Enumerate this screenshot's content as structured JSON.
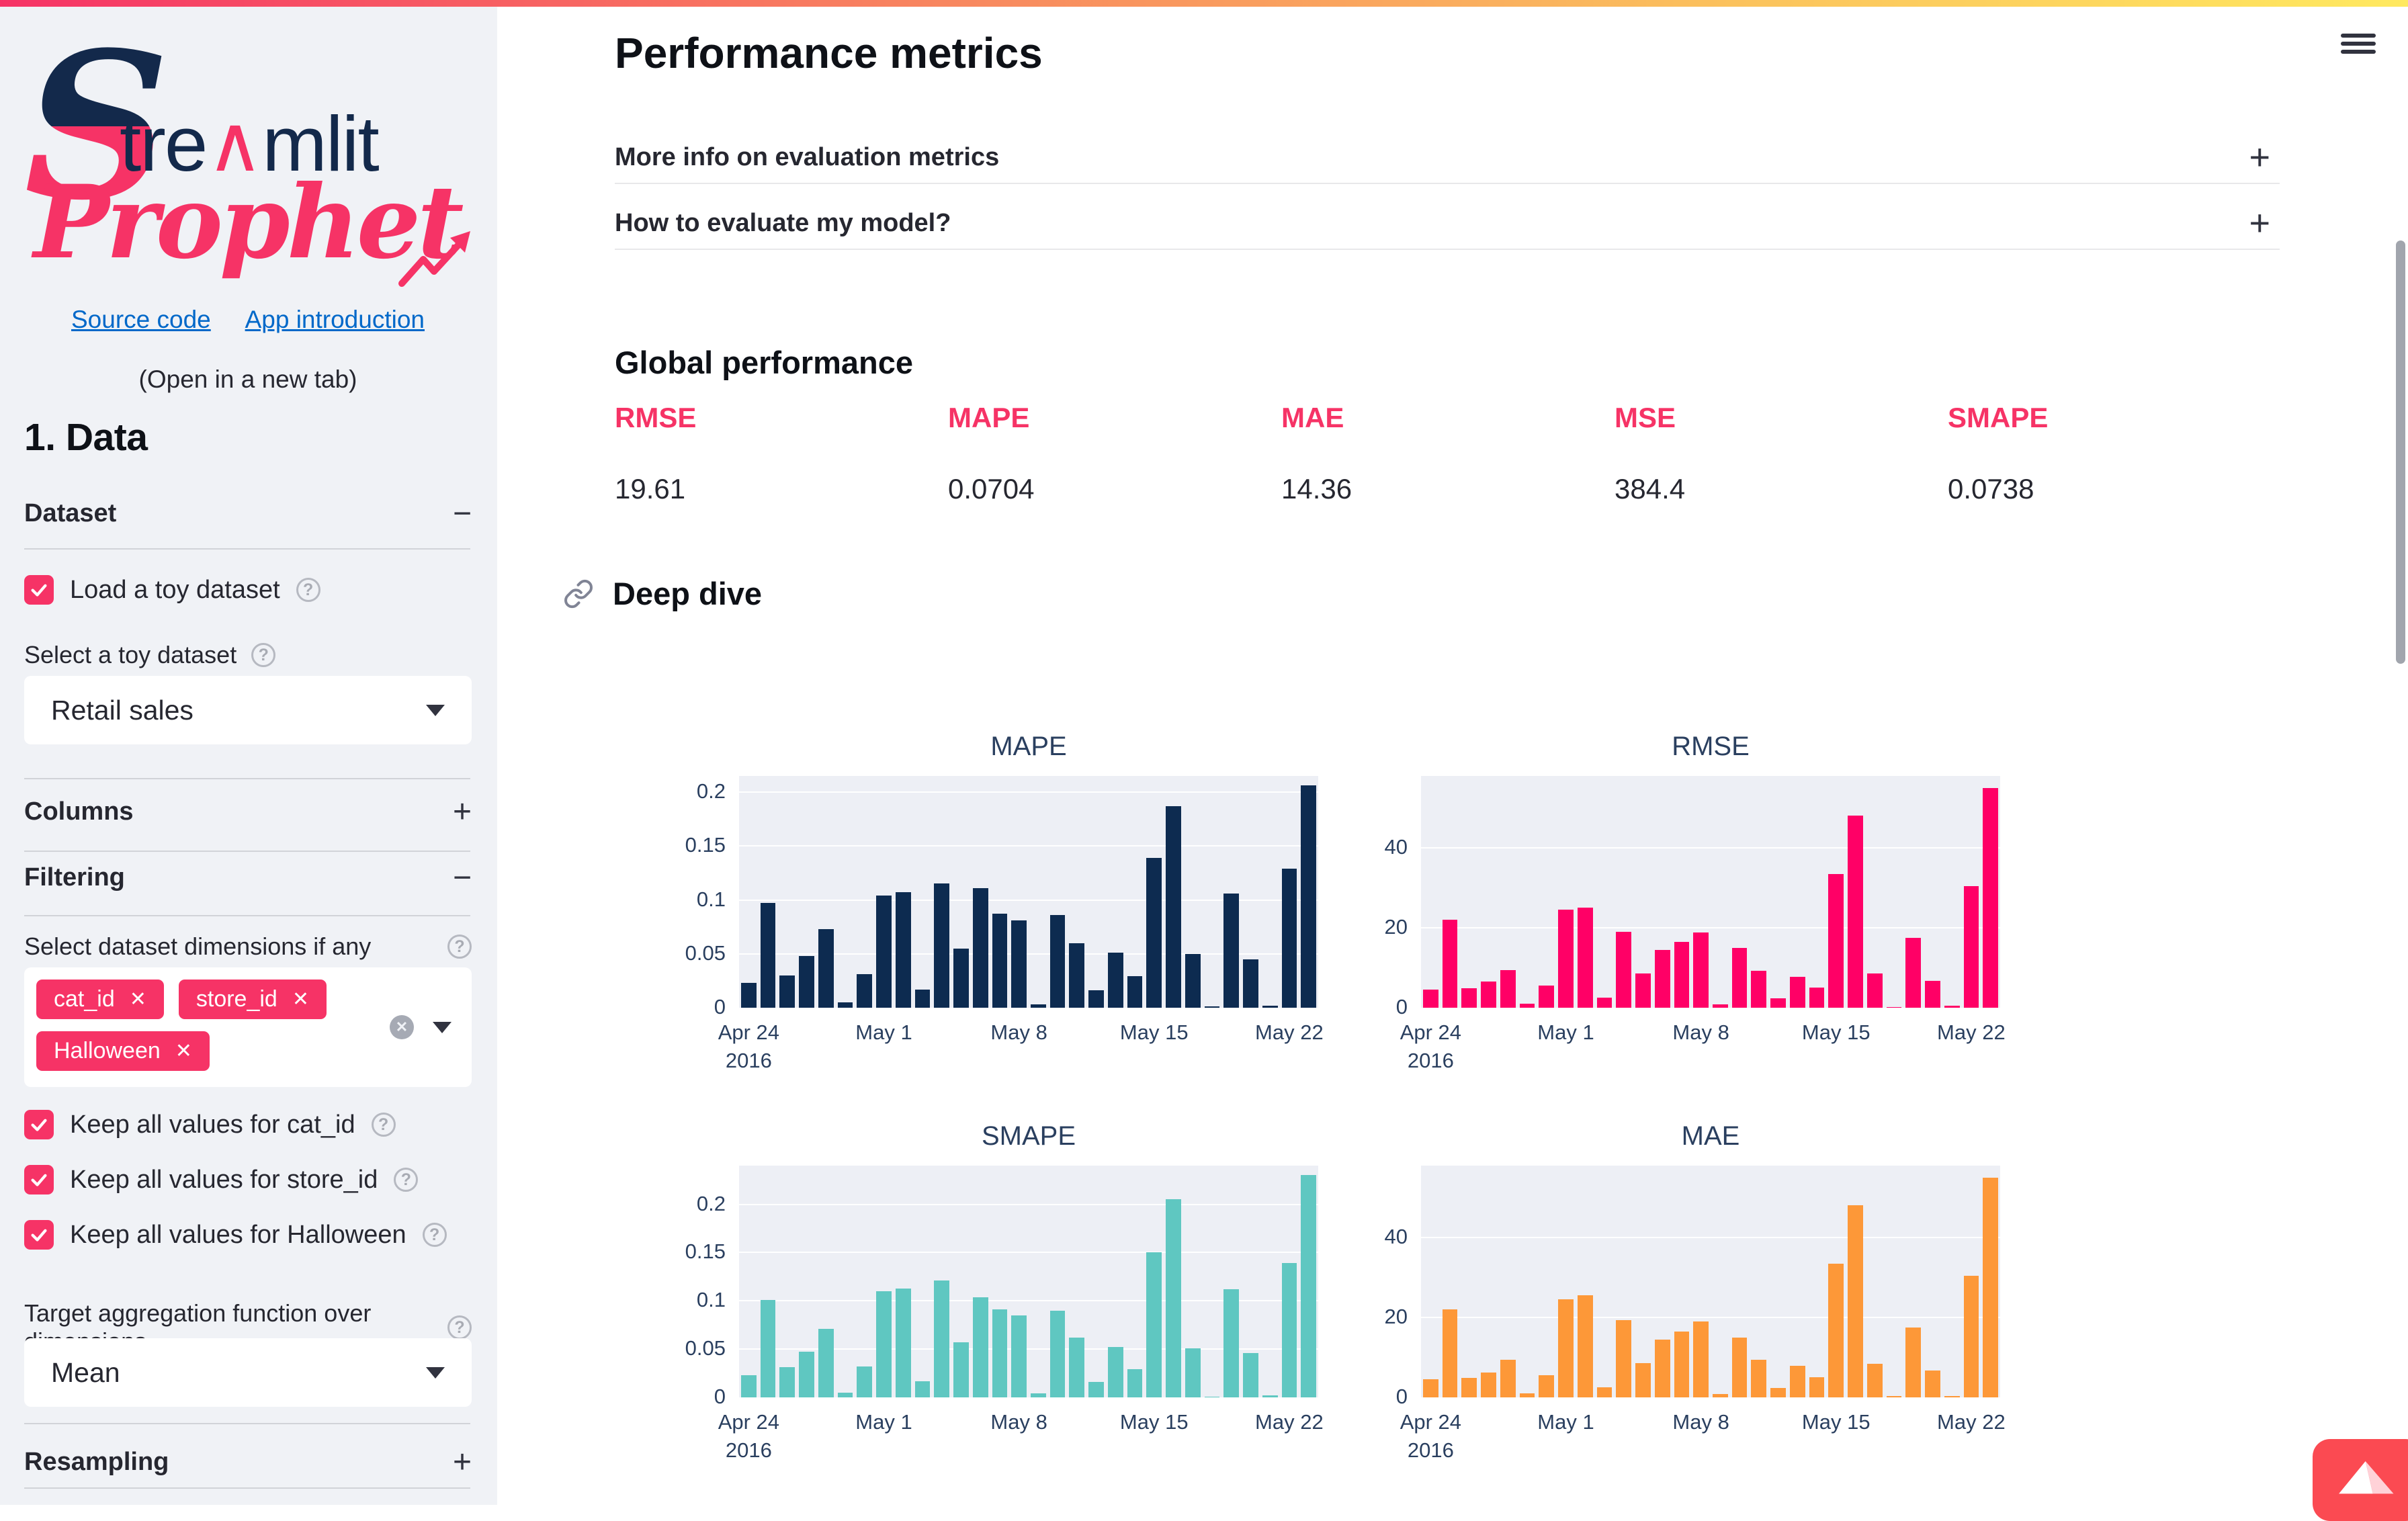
{
  "logo": {
    "big_letter": "S",
    "word1_pre": "tre",
    "word1_caret": "∧",
    "word1_post": "mlit",
    "word2": "Prophet",
    "navy": "#13294b",
    "pink": "#f63366"
  },
  "icons": {
    "help": "?",
    "close": "✕",
    "minus": "−",
    "plus": "+"
  },
  "colors": {
    "primary_pink": "#f63366",
    "sidebar_bg": "#f0f2f6",
    "link_blue": "#0068c9",
    "text_dark": "#262730",
    "badge_red": "#fb4a52"
  },
  "sidebar": {
    "links": [
      {
        "label": "Source code"
      },
      {
        "label": "App introduction"
      }
    ],
    "open_note": "(Open in a new tab)",
    "title": "1. Data",
    "sections": {
      "dataset": {
        "label": "Dataset",
        "state": "−"
      },
      "columns": {
        "label": "Columns",
        "state": "+"
      },
      "filtering": {
        "label": "Filtering",
        "state": "−"
      },
      "resampling": {
        "label": "Resampling",
        "state": "+"
      }
    },
    "load_toy_dataset": {
      "label": "Load a toy dataset",
      "checked": true
    },
    "toy_dataset_select": {
      "label": "Select a toy dataset",
      "value": "Retail sales"
    },
    "dimensions_label": "Select dataset dimensions if any",
    "dimension_tags": [
      "cat_id",
      "store_id",
      "Halloween"
    ],
    "keep_checkboxes": [
      {
        "label": "Keep all values for cat_id",
        "checked": true
      },
      {
        "label": "Keep all values for store_id",
        "checked": true
      },
      {
        "label": "Keep all values for Halloween",
        "checked": true
      }
    ],
    "aggregation": {
      "label": "Target aggregation function over dimensions",
      "value": "Mean"
    }
  },
  "main": {
    "title": "Performance metrics",
    "expanders": [
      {
        "label": "More info on evaluation metrics",
        "state": "+"
      },
      {
        "label": "How to evaluate my model?",
        "state": "+"
      }
    ],
    "global_performance": {
      "title": "Global performance",
      "metrics": [
        {
          "label": "RMSE",
          "value": "19.61"
        },
        {
          "label": "MAPE",
          "value": "0.0704"
        },
        {
          "label": "MAE",
          "value": "14.36"
        },
        {
          "label": "MSE",
          "value": "384.4"
        },
        {
          "label": "SMAPE",
          "value": "0.0738"
        }
      ]
    },
    "deep_dive_title": "Deep dive"
  },
  "chart_data": {
    "type": "bar",
    "grid": true,
    "legend": false,
    "plot_bg": "#edeff5",
    "grid_color": "#ffffff",
    "tick_color": "#2a3f5f",
    "x_dates": [
      "2016-04-24",
      "2016-04-25",
      "2016-04-26",
      "2016-04-27",
      "2016-04-28",
      "2016-04-29",
      "2016-04-30",
      "2016-05-01",
      "2016-05-02",
      "2016-05-03",
      "2016-05-04",
      "2016-05-05",
      "2016-05-06",
      "2016-05-07",
      "2016-05-08",
      "2016-05-09",
      "2016-05-10",
      "2016-05-11",
      "2016-05-12",
      "2016-05-13",
      "2016-05-14",
      "2016-05-15",
      "2016-05-16",
      "2016-05-17",
      "2016-05-18",
      "2016-05-19",
      "2016-05-20",
      "2016-05-21",
      "2016-05-22",
      "2016-05-23"
    ],
    "x_tick_labels": [
      {
        "index": 0,
        "label": "Apr 24",
        "sub": "2016"
      },
      {
        "index": 7,
        "label": "May 1"
      },
      {
        "index": 14,
        "label": "May 8"
      },
      {
        "index": 21,
        "label": "May 15"
      },
      {
        "index": 28,
        "label": "May 22"
      }
    ],
    "charts": [
      {
        "title": "MAPE",
        "bar_color": "#0d2b50",
        "ylim": [
          0,
          0.215
        ],
        "yticks": [
          {
            "v": 0,
            "label": "0"
          },
          {
            "v": 0.05,
            "label": "0.05"
          },
          {
            "v": 0.1,
            "label": "0.1"
          },
          {
            "v": 0.15,
            "label": "0.15"
          },
          {
            "v": 0.2,
            "label": "0.2"
          }
        ],
        "values": [
          0.023,
          0.097,
          0.03,
          0.048,
          0.073,
          0.005,
          0.031,
          0.104,
          0.107,
          0.017,
          0.115,
          0.055,
          0.111,
          0.087,
          0.081,
          0.003,
          0.086,
          0.06,
          0.016,
          0.051,
          0.029,
          0.139,
          0.187,
          0.05,
          0.001,
          0.106,
          0.045,
          0.002,
          0.129,
          0.206
        ]
      },
      {
        "title": "RMSE",
        "bar_color": "#ff0066",
        "ylim": [
          0,
          58
        ],
        "yticks": [
          {
            "v": 0,
            "label": "0"
          },
          {
            "v": 20,
            "label": "20"
          },
          {
            "v": 40,
            "label": "40"
          }
        ],
        "values": [
          4.5,
          22,
          4.8,
          6.5,
          9.5,
          1,
          5.5,
          24.5,
          25,
          2.5,
          19,
          8.5,
          14.5,
          16.5,
          18.8,
          0.8,
          15,
          9.3,
          2.3,
          7.8,
          5,
          33.5,
          48,
          8.5,
          0.2,
          17.5,
          6.8,
          0.5,
          30.5,
          55
        ]
      },
      {
        "title": "SMAPE",
        "bar_color": "#5fc7c1",
        "ylim": [
          0,
          0.24
        ],
        "yticks": [
          {
            "v": 0,
            "label": "0"
          },
          {
            "v": 0.05,
            "label": "0.05"
          },
          {
            "v": 0.1,
            "label": "0.1"
          },
          {
            "v": 0.15,
            "label": "0.15"
          },
          {
            "v": 0.2,
            "label": "0.2"
          }
        ],
        "values": [
          0.023,
          0.101,
          0.031,
          0.047,
          0.071,
          0.005,
          0.032,
          0.11,
          0.113,
          0.017,
          0.121,
          0.057,
          0.104,
          0.091,
          0.085,
          0.004,
          0.09,
          0.062,
          0.016,
          0.052,
          0.029,
          0.15,
          0.205,
          0.051,
          0.001,
          0.112,
          0.046,
          0.002,
          0.139,
          0.23
        ]
      },
      {
        "title": "MAE",
        "bar_color": "#fd9838",
        "ylim": [
          0,
          58
        ],
        "yticks": [
          {
            "v": 0,
            "label": "0"
          },
          {
            "v": 20,
            "label": "20"
          },
          {
            "v": 40,
            "label": "40"
          }
        ],
        "values": [
          4.5,
          22,
          4.8,
          6.3,
          9.5,
          1,
          5.5,
          24.5,
          25.5,
          2.5,
          19.3,
          8.5,
          14.5,
          16.5,
          19,
          0.9,
          15,
          9.4,
          2.3,
          7.9,
          5,
          33.5,
          48,
          8.4,
          0.3,
          17.5,
          6.8,
          0.4,
          30.5,
          55
        ]
      }
    ]
  }
}
